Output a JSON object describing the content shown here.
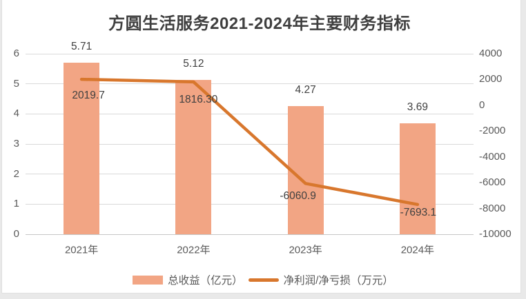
{
  "chart_data": {
    "type": "combo",
    "title": "方圆生活服务2021-2024年主要财务指标",
    "categories": [
      "2021年",
      "2022年",
      "2023年",
      "2024年"
    ],
    "series": [
      {
        "name": "总收益（亿元）",
        "type": "bar",
        "axis": "left",
        "color": "#F2A584",
        "values": [
          5.71,
          5.12,
          4.27,
          3.69
        ],
        "labels": [
          "5.71",
          "5.12",
          "4.27",
          "3.69"
        ]
      },
      {
        "name": "净利润/净亏损（万元）",
        "type": "line",
        "axis": "right",
        "color": "#D8772D",
        "values": [
          2019.7,
          1816.3,
          -6060.9,
          -7693.1
        ],
        "labels": [
          "2019.7",
          "1816.30",
          "-6060.9",
          "-7693.1"
        ]
      }
    ],
    "left_axis": {
      "min": 0,
      "max": 6,
      "step": 1,
      "ticks": [
        "6",
        "5",
        "4",
        "3",
        "2",
        "1",
        "0"
      ]
    },
    "right_axis": {
      "min": -10000,
      "max": 4000,
      "step": 2000,
      "ticks": [
        "4000",
        "2000",
        "0",
        "-2000",
        "-4000",
        "-6000",
        "-8000",
        "-10000"
      ]
    },
    "grid": true,
    "legend_position": "bottom",
    "colors": {
      "bar_fill": "#F2A584",
      "line_stroke": "#D8772D",
      "title_text": "#3f3f3f",
      "axis_text": "#595959",
      "data_label_text": "#404040",
      "gridline": "#d9d9d9",
      "background": "#ffffff"
    }
  }
}
